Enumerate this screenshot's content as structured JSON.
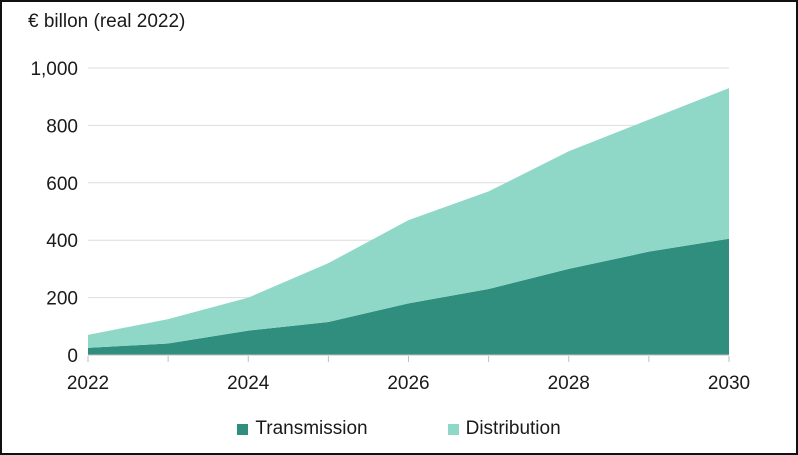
{
  "chart_data": {
    "type": "area",
    "stacked": true,
    "title": "€ billon (real 2022)",
    "x": [
      2022,
      2023,
      2024,
      2025,
      2026,
      2027,
      2028,
      2029,
      2030
    ],
    "series": [
      {
        "name": "Transmission",
        "color": "#2F8E7E",
        "values": [
          25,
          40,
          85,
          115,
          180,
          230,
          300,
          360,
          405
        ]
      },
      {
        "name": "Distribution",
        "color": "#8FD8C7",
        "values": [
          45,
          85,
          115,
          205,
          290,
          340,
          410,
          460,
          525
        ]
      }
    ],
    "stacked_totals": [
      70,
      125,
      200,
      320,
      470,
      570,
      710,
      820,
      930
    ],
    "ylim": [
      0,
      1000
    ],
    "yticks": {
      "values": [
        0,
        200,
        400,
        600,
        800,
        1000
      ],
      "labels": [
        "0",
        "200",
        "400",
        "600",
        "800",
        "1,000"
      ]
    },
    "xtick_years_with_marks": [
      2022,
      2023,
      2024,
      2025,
      2026,
      2027,
      2028,
      2029,
      2030
    ],
    "xtick_label_years": [
      2022,
      2024,
      2026,
      2028,
      2030
    ],
    "xtick_labels": [
      "2022",
      "2024",
      "2026",
      "2028",
      "2030"
    ],
    "grid": "horizontal",
    "legend_position": "bottom-center"
  },
  "colors": {
    "background": "#FFFFFF",
    "frame_border": "#111111",
    "gridline": "#DEDEDE",
    "tick": "#BFBFBF",
    "text": "#1A1A1A"
  }
}
